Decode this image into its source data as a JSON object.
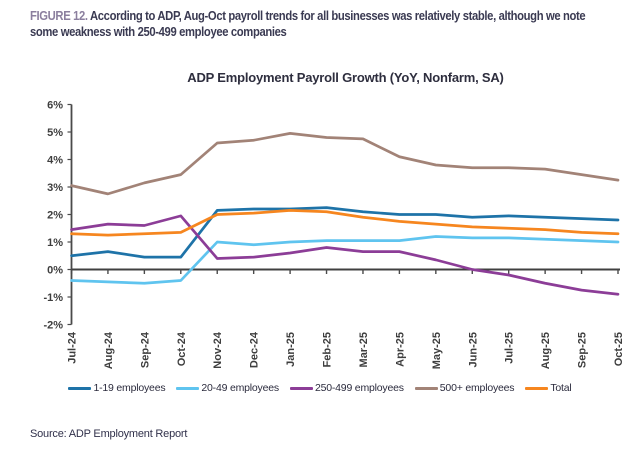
{
  "figure": {
    "label": "FIGURE 12. ",
    "title_rest": "According to ADP, Aug-Oct payroll trends for all businesses was relatively stable, although we note some weakness with 250-499 employee companies",
    "source": "Source: ADP Employment Report"
  },
  "chart_data": {
    "type": "line",
    "title": "ADP Employment Payroll Growth (YoY, Nonfarm, SA)",
    "categories": [
      "Jul-24",
      "Aug-24",
      "Sep-24",
      "Oct-24",
      "Nov-24",
      "Dec-24",
      "Jan-25",
      "Feb-25",
      "Mar-25",
      "Apr-25",
      "May-25",
      "Jun-25",
      "Jul-25",
      "Aug-25",
      "Sep-25",
      "Oct-25"
    ],
    "series": [
      {
        "name": "1-19 employees",
        "color": "#1e73a8",
        "values": [
          0.5,
          0.65,
          0.45,
          0.45,
          2.15,
          2.2,
          2.2,
          2.25,
          2.1,
          2.0,
          2.0,
          1.9,
          1.95,
          1.9,
          1.85,
          1.8
        ]
      },
      {
        "name": "20-49 employees",
        "color": "#5fc4ef",
        "values": [
          -0.4,
          -0.45,
          -0.5,
          -0.4,
          1.0,
          0.9,
          1.0,
          1.05,
          1.05,
          1.05,
          1.2,
          1.15,
          1.15,
          1.1,
          1.05,
          1.0
        ]
      },
      {
        "name": "250-499 employees",
        "color": "#8c3d97",
        "values": [
          1.45,
          1.65,
          1.6,
          1.95,
          0.4,
          0.45,
          0.6,
          0.8,
          0.65,
          0.65,
          0.35,
          0.0,
          -0.2,
          -0.5,
          -0.75,
          -0.9
        ]
      },
      {
        "name": "500+ employees",
        "color": "#a28377",
        "values": [
          3.05,
          2.75,
          3.15,
          3.45,
          4.6,
          4.7,
          4.95,
          4.8,
          4.75,
          4.1,
          3.8,
          3.7,
          3.7,
          3.65,
          3.45,
          3.25
        ]
      },
      {
        "name": "Total",
        "color": "#f6861f",
        "values": [
          1.3,
          1.25,
          1.3,
          1.35,
          2.0,
          2.05,
          2.15,
          2.1,
          1.9,
          1.75,
          1.65,
          1.55,
          1.5,
          1.45,
          1.35,
          1.3
        ]
      }
    ],
    "ylim": [
      -2,
      6
    ],
    "ytick_step": 1,
    "ytick_suffix": "%",
    "grid": false,
    "legend_position": "bottom",
    "axis_color": "#4a4a4a"
  }
}
